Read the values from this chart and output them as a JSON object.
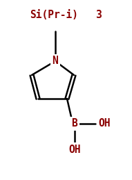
{
  "bg_color": "#ffffff",
  "line_color": "#000000",
  "text_color": "#8B0000",
  "font_family": "monospace",
  "font_size": 10.5,
  "font_weight": "bold",
  "si_label": "Si(Pr-i)",
  "sub3_label": "3",
  "n_label": "N",
  "b_label": "B",
  "oh1_label": "OH",
  "oh2_label": "OH",
  "figsize": [
    1.91,
    2.59
  ],
  "dpi": 100
}
